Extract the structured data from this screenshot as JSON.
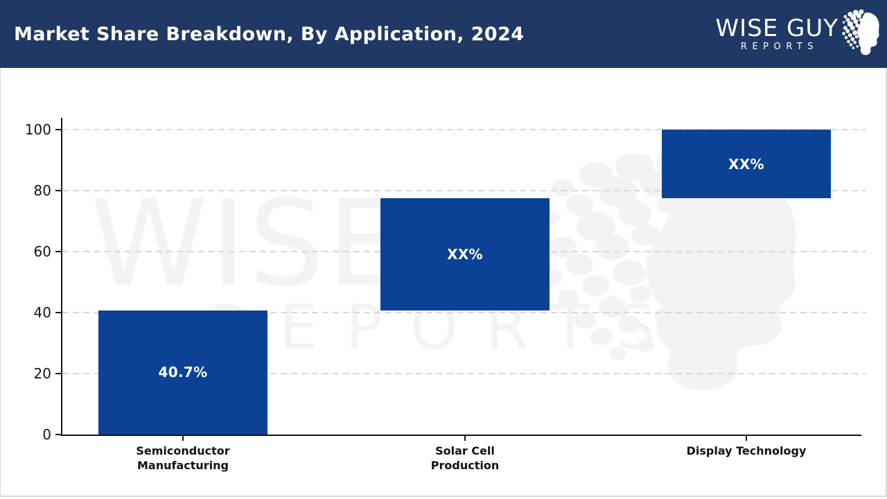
{
  "header": {
    "title": "Market Share Breakdown, By Application, 2024",
    "logo": {
      "line1": "WISE GUY",
      "line2": "REPORTS"
    }
  },
  "watermark": {
    "word1": "WISE",
    "word2": "REPORTS"
  },
  "chart_data": {
    "type": "bar",
    "subtype": "waterfall-breakdown",
    "title": "Market Share Breakdown, By Application, 2024",
    "categories": [
      [
        "Semiconductor",
        "Manufacturing"
      ],
      [
        "Solar Cell",
        "Production"
      ],
      [
        "Display Technology"
      ]
    ],
    "segments": [
      {
        "category": "Semiconductor Manufacturing",
        "start": 0,
        "end": 40.7,
        "label": "40.7%"
      },
      {
        "category": "Solar Cell Production",
        "start": 40.7,
        "end": 77.5,
        "label": "XX%"
      },
      {
        "category": "Display Technology",
        "start": 77.5,
        "end": 100,
        "label": "XX%"
      }
    ],
    "yticks": [
      0,
      20,
      40,
      60,
      80,
      100
    ],
    "ylim": [
      0,
      104
    ],
    "xlabel": "",
    "ylabel": "",
    "grid": {
      "horizontal": true,
      "style": "dashed"
    },
    "legend": null
  },
  "colors": {
    "header_bg": "#1f3864",
    "bar": "#0b4296",
    "grid": "#d8d8d8",
    "axis": "#141414",
    "bar_label": "#ffffff",
    "watermark": "#f3f3f5",
    "frame_border": "#d9d9d9"
  }
}
